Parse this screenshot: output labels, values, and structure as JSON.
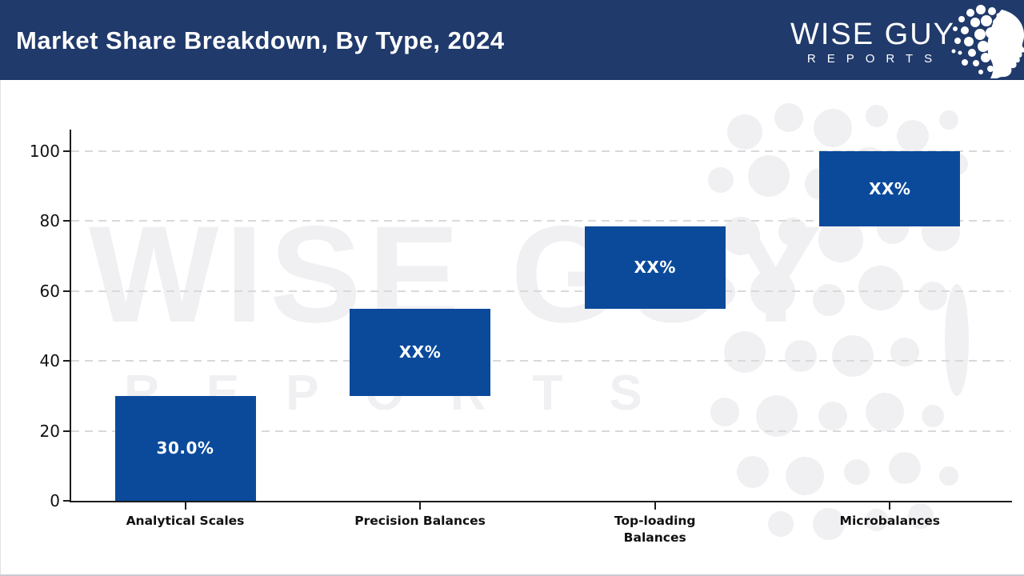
{
  "header": {
    "title": "Market Share Breakdown, By Type, 2024",
    "logo": {
      "line1": "WISE GUY",
      "line2": "REPORTS"
    }
  },
  "watermark": {
    "line1": "WISE GUY",
    "line2": "REPORTS"
  },
  "colors": {
    "header_navy": "#203a6b",
    "bar_blue": "#0b4a9b",
    "bar_label_white": "#ffffff",
    "grid_gray": "#d9d9d9",
    "axis_black": "#1c1c1c",
    "watermark_gray": "#f0f0f3"
  },
  "chart_data": {
    "type": "bar",
    "variant": "waterfall",
    "title": "Market Share Breakdown, By Type, 2024",
    "categories": [
      "Analytical Scales",
      "Precision Balances",
      "Top-loading\nBalances",
      "Microbalances"
    ],
    "segments": [
      {
        "label": "Analytical Scales",
        "start": 0,
        "end": 30,
        "value": 30,
        "display_label": "30.0%"
      },
      {
        "label": "Precision Balances",
        "start": 30,
        "end": 55,
        "value": 25,
        "display_label": "XX%"
      },
      {
        "label": "Top-loading Balances",
        "start": 55,
        "end": 78.5,
        "value": 23.5,
        "display_label": "XX%"
      },
      {
        "label": "Microbalances",
        "start": 78.5,
        "end": 100,
        "value": 21.5,
        "display_label": "XX%"
      }
    ],
    "xlabel": "",
    "ylabel": "",
    "ylim": [
      0,
      100
    ],
    "yticks": [
      0,
      20,
      40,
      60,
      80,
      100
    ],
    "grid": "dashed-horizontal",
    "legend": "none",
    "bar_color": "#0b4a9b",
    "label_color": "#ffffff"
  }
}
